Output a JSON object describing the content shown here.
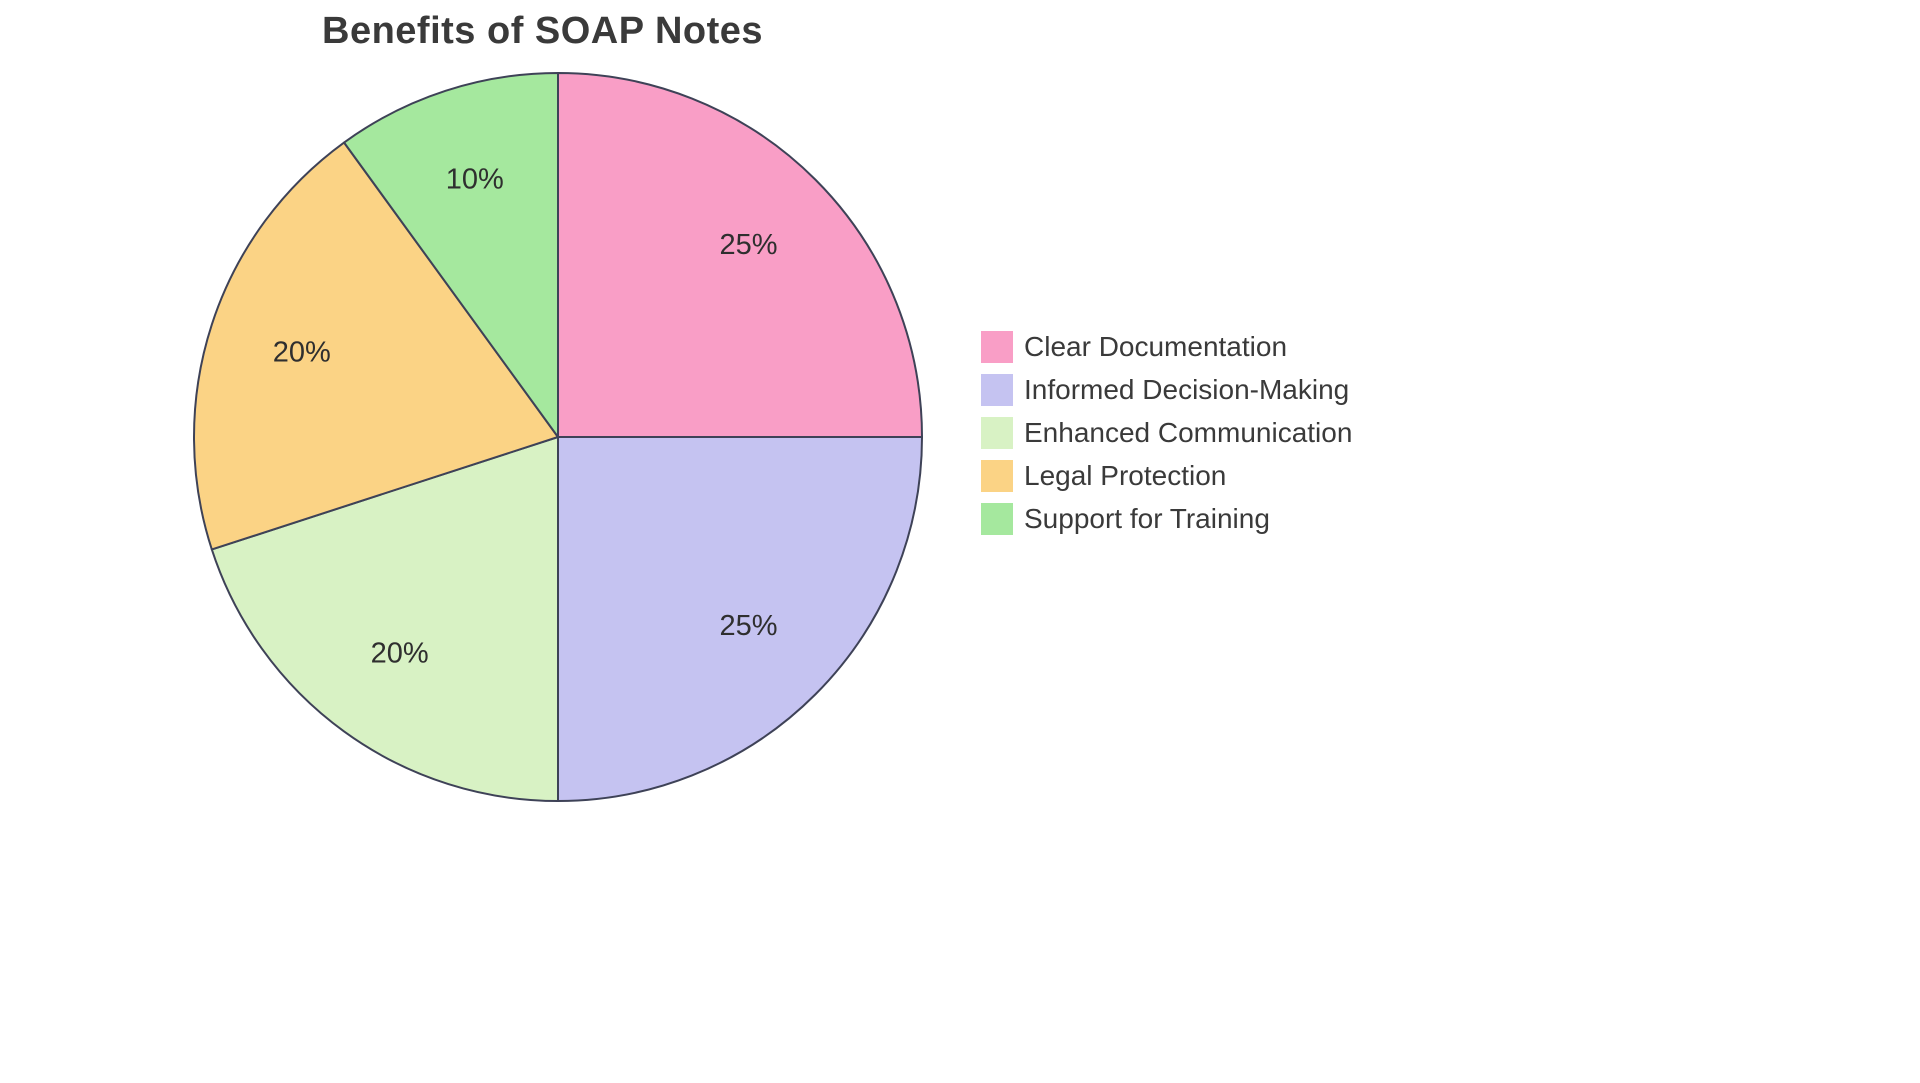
{
  "chart_data": {
    "type": "pie",
    "title": "Benefits of SOAP Notes",
    "labels": [
      "Clear Documentation",
      "Informed Decision-Making",
      "Enhanced Communication",
      "Legal Protection",
      "Support for Training"
    ],
    "values": [
      25,
      25,
      20,
      20,
      10
    ],
    "percent_labels": [
      "25%",
      "25%",
      "20%",
      "20%",
      "10%"
    ],
    "colors": [
      "#F99EC6",
      "#C5C3F1",
      "#D8F2C4",
      "#FBD385",
      "#A5E89E"
    ],
    "slice_stroke_color": "#3E4257",
    "start_angle_deg": 0,
    "direction": "clockwise",
    "legend_position": "right",
    "background_color": "#FFFFFF"
  }
}
